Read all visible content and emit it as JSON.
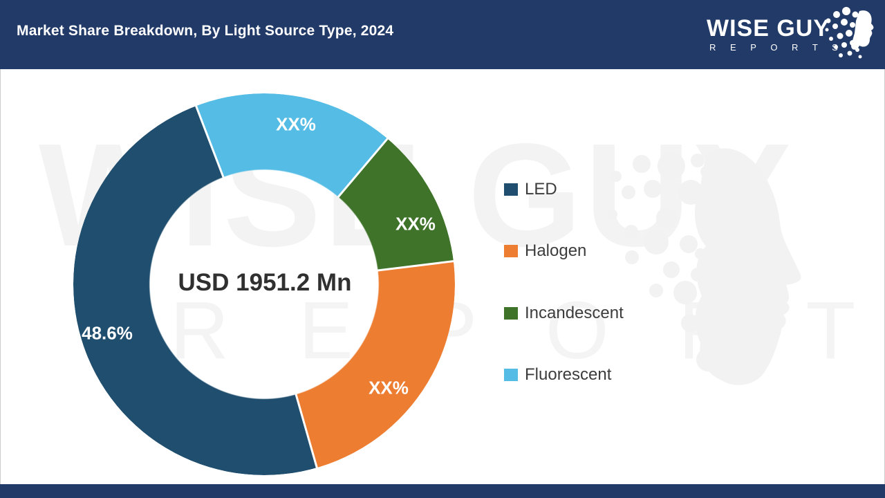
{
  "header": {
    "title": "Market Share Breakdown, By Light Source Type, 2024",
    "brand": {
      "name": "WISE GUY",
      "sub": "R E P O R T S"
    },
    "bg_color": "#213a68"
  },
  "watermark": {
    "line1": "WISE GUY",
    "line2": "R E P O R T S"
  },
  "chart_data": {
    "type": "pie",
    "subtype": "donut",
    "title": "Market Share Breakdown, By Light Source Type, 2024",
    "center_label": "USD 1951.2 Mn",
    "categories": [
      "LED",
      "Halogen",
      "Incandescent",
      "Fluorescent"
    ],
    "values": [
      48.6,
      22.5,
      11.9,
      17.0
    ],
    "value_labels": [
      "48.6%",
      "XX%",
      "XX%",
      "XX%"
    ],
    "colors": [
      "#1f4e6e",
      "#ed7d31",
      "#3e7329",
      "#55bde5"
    ],
    "start_angle_css": 339,
    "direction": "ccw",
    "legend_position": "right",
    "hole_radius_ratio": 0.6
  },
  "legend": {
    "items": [
      {
        "label": "LED"
      },
      {
        "label": "Halogen"
      },
      {
        "label": "Incandescent"
      },
      {
        "label": "Fluorescent"
      }
    ]
  },
  "footer": {
    "bg_color": "#213a68"
  }
}
